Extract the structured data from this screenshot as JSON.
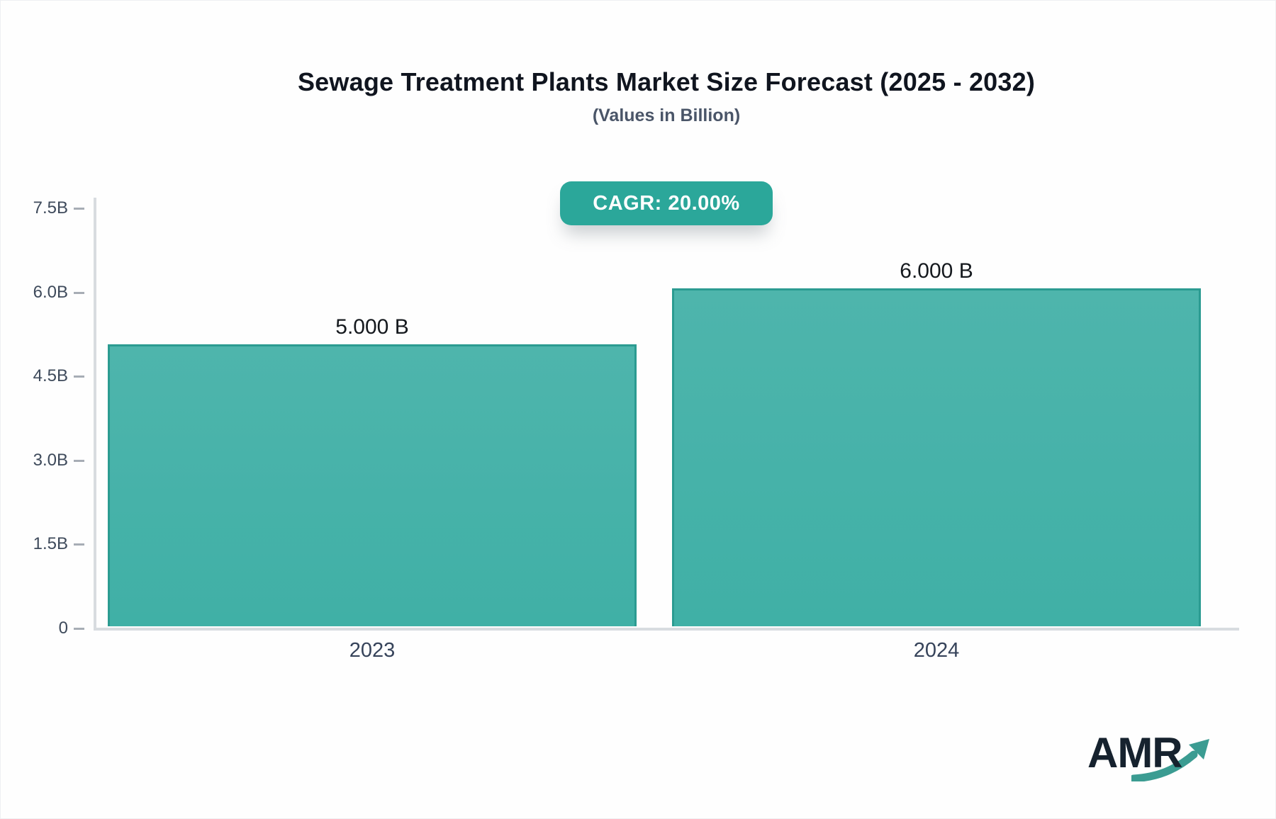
{
  "chart_data": {
    "type": "bar",
    "title": "Sewage Treatment Plants Market Size Forecast (2025 - 2032)",
    "subtitle": "(Values in Billion)",
    "cagr_label": "CAGR: 20.00%",
    "cagr_percent": 20.0,
    "unit": "Billion",
    "categories": [
      "2023",
      "2024"
    ],
    "values": [
      5.0,
      6.0
    ],
    "value_labels": [
      "5.000 B",
      "6.000 B"
    ],
    "xlabel": "",
    "ylabel": "",
    "ylim": [
      0,
      7.5
    ],
    "ytick_values": [
      7.5,
      6.0,
      4.5,
      3.0,
      1.5,
      0
    ],
    "ytick_labels": [
      "7.5B",
      "6.0B",
      "4.5B",
      "3.0B",
      "1.5B",
      "0"
    ],
    "grid": false,
    "legend": false,
    "colors": {
      "bar_fill": "#47b3aa",
      "bar_border": "#2b9b91",
      "badge_background": "#2ba79a",
      "badge_text": "#ffffff",
      "axis_line": "#d8dce0",
      "tick_dash": "#a7adb5"
    }
  },
  "logo": {
    "text": "AMR",
    "text_color": "#16222e",
    "arrow_color": "#3b9c92"
  }
}
